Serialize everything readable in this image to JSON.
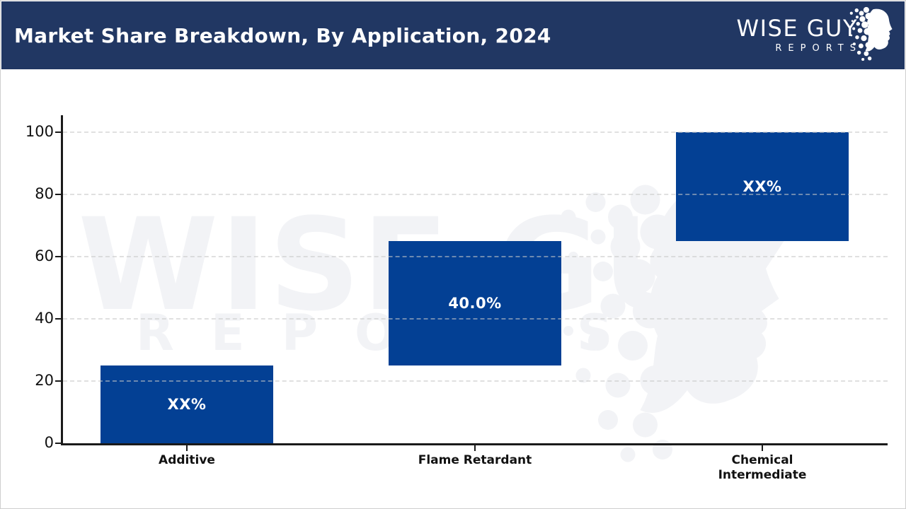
{
  "header": {
    "title": "Market Share Breakdown, By Application, 2024",
    "background_color": "#213763",
    "logo": {
      "line1": "WISE GUY",
      "line2": "REPORTS"
    }
  },
  "watermark": {
    "line1": "WISE GUY",
    "line2": "REPORTS"
  },
  "chart_data": {
    "type": "bar",
    "subtype": "floating-waterfall",
    "title": "Market Share Breakdown, By Application, 2024",
    "categories": [
      "Additive",
      "Flame Retardant",
      "Chemical Intermediate"
    ],
    "bars": [
      {
        "category": "Additive",
        "start": 0,
        "end": 25,
        "label": "XX%"
      },
      {
        "category": "Flame Retardant",
        "start": 25,
        "end": 65,
        "label": "40.0%"
      },
      {
        "category": "Chemical Intermediate",
        "start": 65,
        "end": 100,
        "label": "XX%"
      }
    ],
    "ylim": [
      0,
      100
    ],
    "yticks": [
      0,
      20,
      40,
      60,
      80,
      100
    ],
    "grid": "horizontal-dashed",
    "legend": "none",
    "bar_color": "#034094",
    "bar_label_color": "#ffffff",
    "axis_color": "#1a1a1a"
  }
}
